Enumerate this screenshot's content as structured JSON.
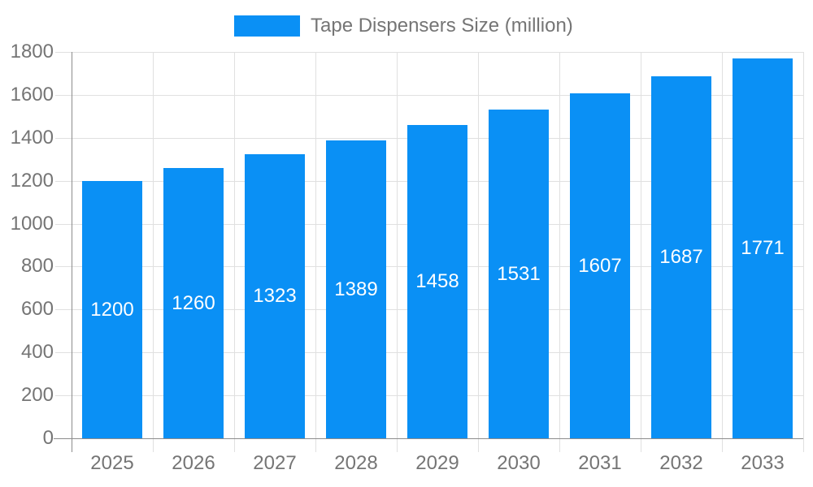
{
  "legend": {
    "label": "Tape Dispensers Size (million)"
  },
  "chart_data": {
    "type": "bar",
    "title": "Tape Dispensers Size (million)",
    "categories": [
      "2025",
      "2026",
      "2027",
      "2028",
      "2029",
      "2030",
      "2031",
      "2032",
      "2033"
    ],
    "values": [
      1200,
      1260,
      1323,
      1389,
      1458,
      1531,
      1607,
      1687,
      1771
    ],
    "series": [
      {
        "name": "Tape Dispensers Size (million)",
        "values": [
          1200,
          1260,
          1323,
          1389,
          1458,
          1531,
          1607,
          1687,
          1771
        ]
      }
    ],
    "xlabel": "",
    "ylabel": "",
    "ylim": [
      0,
      1800
    ],
    "ytick_step": 200,
    "yticks": [
      "0",
      "200",
      "400",
      "600",
      "800",
      "1000",
      "1200",
      "1400",
      "1600",
      "1800"
    ],
    "grid": true,
    "legend_position": "top",
    "value_labels": "inside-center",
    "colors": {
      "bar": "#0a90f5",
      "grid": "#e0e0e0",
      "axis": "#8c8c8c",
      "axis_text": "#757575",
      "value_text": "#ffffff",
      "background": "#ffffff"
    }
  }
}
